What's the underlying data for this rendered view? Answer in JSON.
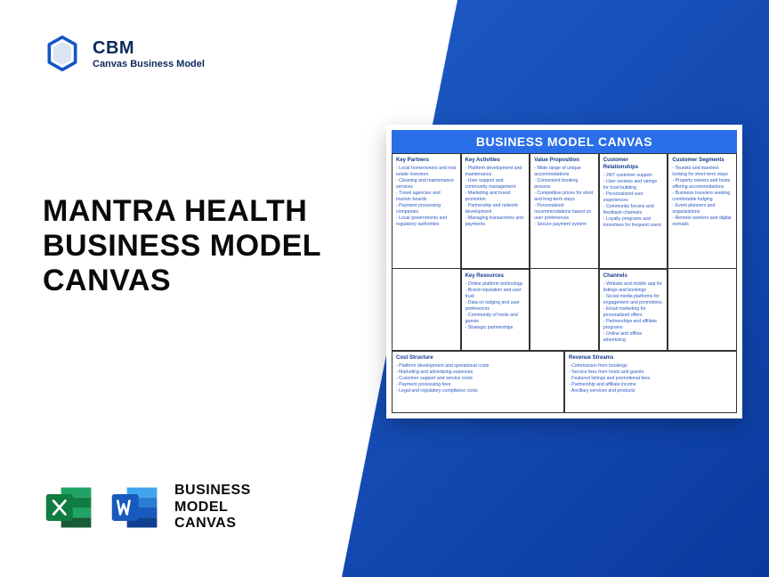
{
  "brand": {
    "abbr": "CBM",
    "name": "Canvas Business Model",
    "logo_color": "#1356c4"
  },
  "headline": "MANTRA HEALTH BUSINESS MODEL CANVAS",
  "footer": {
    "label": "BUSINESS\nMODEL\nCANVAS",
    "excel_color": "#1d8f4f",
    "word_color": "#1b5fc1"
  },
  "background_gradient": {
    "from": "#1e5bc6",
    "to": "#0a3a9e"
  },
  "canvas": {
    "title": "BUSINESS MODEL CANVAS",
    "title_bg": "#2a6fe8",
    "border_color": "#333333",
    "text_color": "#2a58c0",
    "heading_color": "#123a8a",
    "blocks": {
      "key_partners": {
        "heading": "Key Partners",
        "items": [
          "Local homeowners and real estate investors",
          "Cleaning and maintenance services",
          "Travel agencies and tourism boards",
          "Payment processing companies",
          "Local governments and regulatory authorities"
        ]
      },
      "key_activities": {
        "heading": "Key Activities",
        "items": [
          "Platform development and maintenance",
          "User support and community management",
          "Marketing and brand promotion",
          "Partnership and network development",
          "Managing transactions and payments"
        ]
      },
      "value_proposition": {
        "heading": "Value Proposition",
        "items": [
          "Wide range of unique accommodations",
          "Convenient booking process",
          "Competitive prices for short and long-term stays",
          "Personalized recommendations based on user preferences",
          "Secure payment system"
        ]
      },
      "customer_relationships": {
        "heading": "Customer Relationships",
        "items": [
          "24/7 customer support",
          "User reviews and ratings for trust-building",
          "Personalized user experiences",
          "Community forums and feedback channels",
          "Loyalty programs and incentives for frequent users"
        ]
      },
      "customer_segments": {
        "heading": "Customer Segments",
        "items": [
          "Tourists and travelers looking for short-term stays",
          "Property owners and hosts offering accommodations",
          "Business travelers seeking comfortable lodging",
          "Event planners and organizations",
          "Remote workers and digital nomads"
        ]
      },
      "key_resources": {
        "heading": "Key Resources",
        "items": [
          "Online platform technology",
          "Brand reputation and user trust",
          "Data on lodging and user preferences",
          "Community of hosts and guests",
          "Strategic partnerships"
        ]
      },
      "channels": {
        "heading": "Channels",
        "items": [
          "Website and mobile app for listings and bookings",
          "Social media platforms for engagement and promotions",
          "Email marketing for personalized offers",
          "Partnerships and affiliate programs",
          "Online and offline advertising"
        ]
      },
      "cost_structure": {
        "heading": "Cost Structure",
        "items": [
          "Platform development and operational costs",
          "Marketing and advertising expenses",
          "Customer support and service costs",
          "Payment processing fees",
          "Legal and regulatory compliance costs"
        ]
      },
      "revenue_streams": {
        "heading": "Revenue Streams",
        "items": [
          "Commission from bookings",
          "Service fees from hosts and guests",
          "Featured listings and promotional fees",
          "Partnership and affiliate income",
          "Ancillary services and products"
        ]
      }
    }
  }
}
